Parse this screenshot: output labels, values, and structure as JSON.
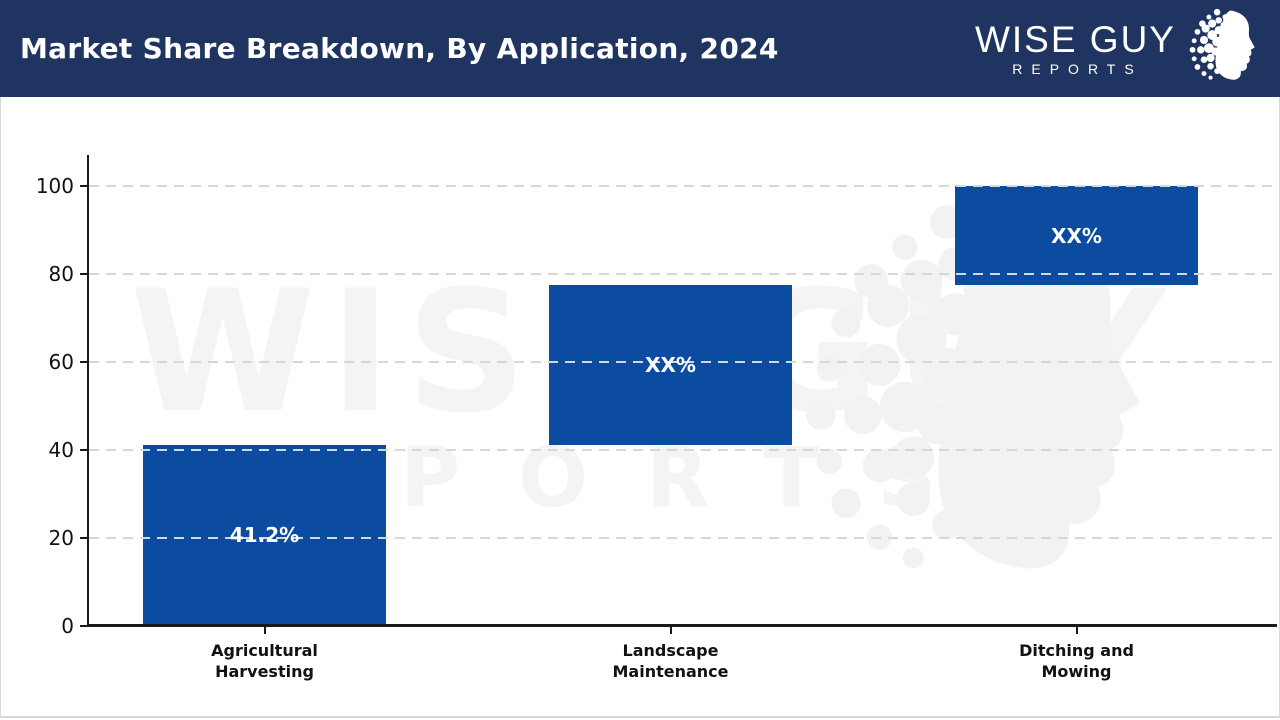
{
  "header": {
    "title": "Market Share Breakdown, By Application, 2024",
    "bg_color": "#1f3460",
    "logo": {
      "wise": "WISE GUY",
      "reports": "REPORTS"
    }
  },
  "watermark": {
    "line1": "WISE GUY",
    "line2": "REPORTS"
  },
  "chart_data": {
    "type": "bar",
    "variant": "waterfall",
    "title": "Market Share Breakdown, By Application, 2024",
    "categories": [
      "Agricultural\nHarvesting",
      "Landscape\nMaintenance",
      "Ditching and\nMowing"
    ],
    "segments": [
      {
        "category": "Agricultural Harvesting",
        "start": 0,
        "end": 41.2,
        "label": "41.2%"
      },
      {
        "category": "Landscape Maintenance",
        "start": 41.2,
        "end": 77.5,
        "label": "XX%"
      },
      {
        "category": "Ditching and Mowing",
        "start": 77.5,
        "end": 100,
        "label": "XX%"
      }
    ],
    "ylim": [
      0,
      100
    ],
    "yticks": [
      0,
      20,
      40,
      60,
      80,
      100
    ],
    "grid": {
      "style": "dashed",
      "color": "#d7d7d7"
    },
    "bar_color": "#0b4ba0",
    "bar_label_color": "#ffffff",
    "legend": "none"
  }
}
